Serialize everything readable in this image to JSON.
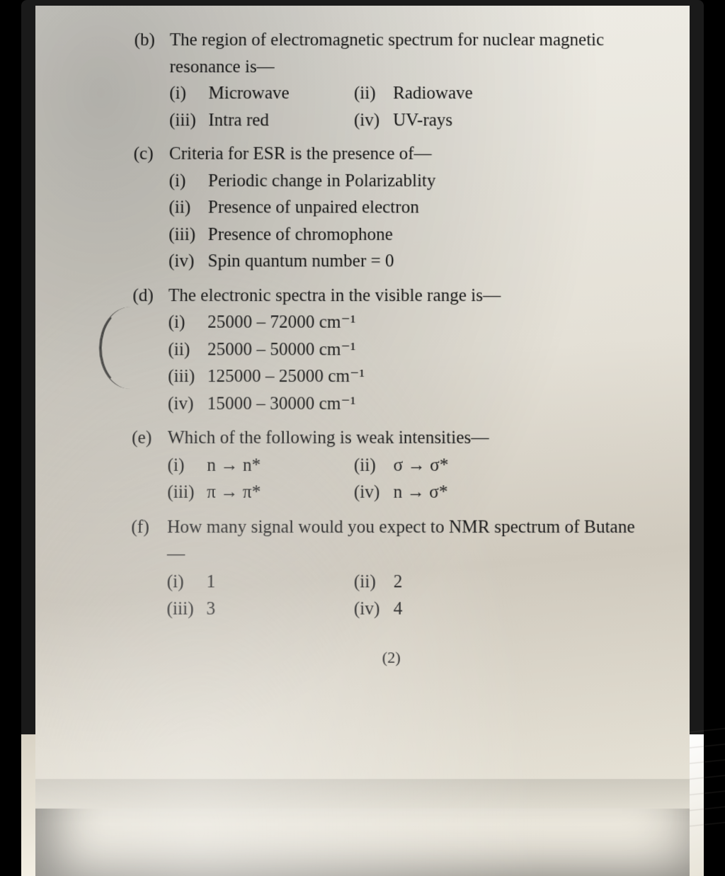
{
  "questions": [
    {
      "label": "(b)",
      "text": "The region of electromagnetic spectrum for nuclear magnetic resonance is—",
      "layout": "two-col",
      "options": [
        {
          "label": "(i)",
          "text": "Microwave"
        },
        {
          "label": "(ii)",
          "text": "Radiowave"
        },
        {
          "label": "(iii)",
          "text": "Intra red"
        },
        {
          "label": "(iv)",
          "text": "UV-rays"
        }
      ]
    },
    {
      "label": "(c)",
      "text": "Criteria for ESR is the presence of—",
      "layout": "one-col",
      "options": [
        {
          "label": "(i)",
          "text": "Periodic change in Polarizablity"
        },
        {
          "label": "(ii)",
          "text": "Presence of unpaired electron"
        },
        {
          "label": "(iii)",
          "text": "Presence of chromophone"
        },
        {
          "label": "(iv)",
          "text": "Spin quantum number = 0"
        }
      ]
    },
    {
      "label": "(d)",
      "text": "The electronic spectra in the visible range is—",
      "layout": "one-col",
      "options": [
        {
          "label": "(i)",
          "text": "25000 – 72000 cm⁻¹"
        },
        {
          "label": "(ii)",
          "text": "25000 – 50000 cm⁻¹"
        },
        {
          "label": "(iii)",
          "text": "125000 – 25000 cm⁻¹"
        },
        {
          "label": "(iv)",
          "text": "15000 – 30000 cm⁻¹"
        }
      ]
    },
    {
      "label": "(e)",
      "text": "Which of the following is weak intensities—",
      "layout": "two-col",
      "options": [
        {
          "label": "(i)",
          "text": "n → n*"
        },
        {
          "label": "(ii)",
          "text": "σ → σ*"
        },
        {
          "label": "(iii)",
          "text": "π → π*"
        },
        {
          "label": "(iv)",
          "text": "n → σ*"
        }
      ]
    },
    {
      "label": "(f)",
      "text": "How many signal would you expect to NMR spectrum of Butane—",
      "layout": "two-col",
      "options": [
        {
          "label": "(i)",
          "text": "1"
        },
        {
          "label": "(ii)",
          "text": "2"
        },
        {
          "label": "(iii)",
          "text": "3"
        },
        {
          "label": "(iv)",
          "text": "4"
        }
      ]
    }
  ],
  "page_number": "(2)"
}
